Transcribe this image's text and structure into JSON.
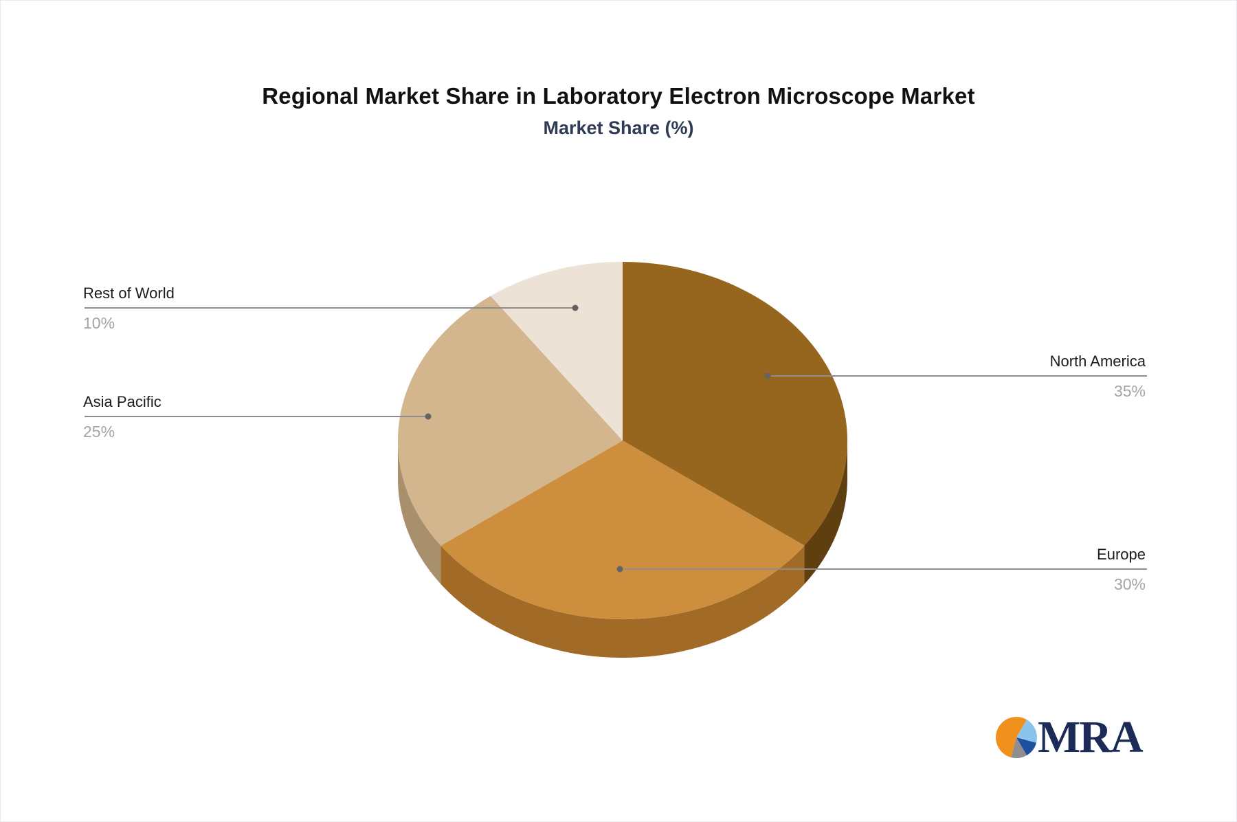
{
  "header": {
    "title": "Regional Market Share in Laboratory Electron Microscope Market",
    "subtitle": "Market Share (%)"
  },
  "chart_data": {
    "type": "pie",
    "style": "3d",
    "title": "Regional Market Share in Laboratory Electron Microscope Market",
    "subtitle": "Market Share (%)",
    "unit": "%",
    "direction": "clockwise",
    "start_angle_deg": 0,
    "legend_position": "callout-labels",
    "slices": [
      {
        "label": "North America",
        "value": 35,
        "pct_label": "35%",
        "color": "#96651e",
        "side_color": "#5f3e10",
        "callout_side": "right"
      },
      {
        "label": "Europe",
        "value": 30,
        "pct_label": "30%",
        "color": "#cd8f3e",
        "side_color": "#a16a27",
        "callout_side": "right"
      },
      {
        "label": "Asia Pacific",
        "value": 25,
        "pct_label": "25%",
        "color": "#d3b58e",
        "side_color": "#a9906c",
        "callout_side": "left"
      },
      {
        "label": "Rest of World",
        "value": 10,
        "pct_label": "10%",
        "color": "#ece3d6",
        "side_color": "#c4ae92",
        "callout_side": "left"
      }
    ]
  },
  "callout_style": {
    "line_color": "#8d8d8d",
    "dot_color": "#636363",
    "label_color": "#1b1b1b",
    "pct_color": "#a4a4a4"
  },
  "logo": {
    "text": "MRA",
    "text_color": "#1b2a56",
    "mark_colors": {
      "orange": "#f0901d",
      "light_blue": "#8ac4ec",
      "dark_blue": "#1e4f9e",
      "gray": "#8e8e8e"
    }
  }
}
